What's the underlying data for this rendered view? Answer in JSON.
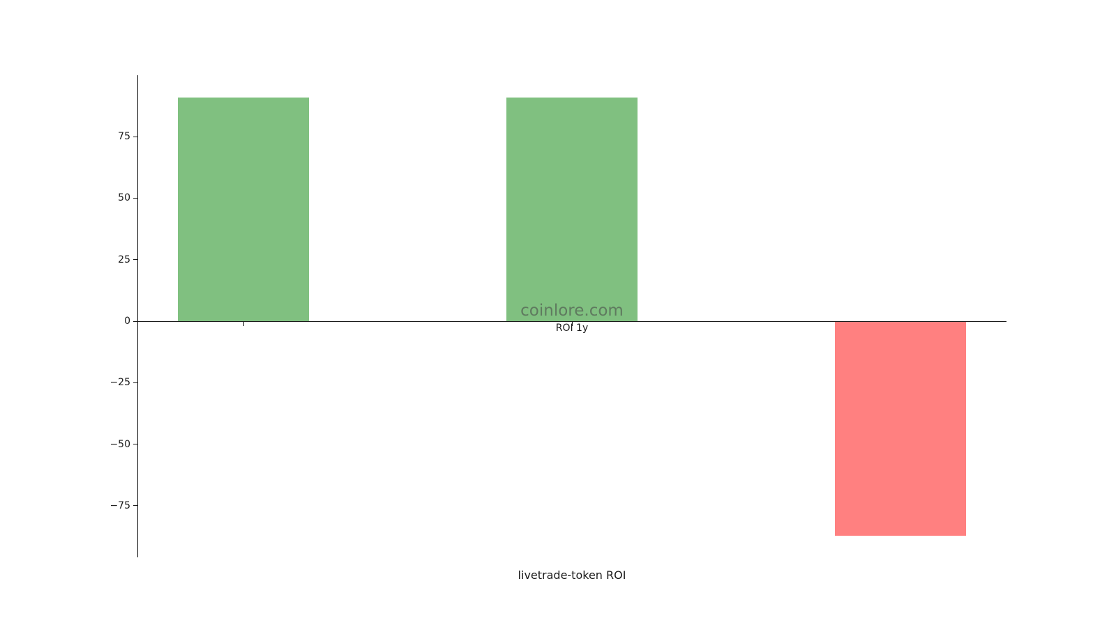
{
  "watermark": {
    "text": "coinlore.com"
  },
  "chart_data": {
    "type": "bar",
    "title": "livetrade-token ROI",
    "categories": [
      "",
      "ROI 1y",
      ""
    ],
    "values": [
      91,
      91,
      -87
    ],
    "bar_colors": [
      "#80c080",
      "#80c080",
      "#ff8080"
    ],
    "positive_color": "#80c080",
    "negative_color": "#ff8080",
    "x_visible_label": "ROI 1y",
    "yticks": [
      {
        "value": 75,
        "label": "75"
      },
      {
        "value": 50,
        "label": "50"
      },
      {
        "value": 25,
        "label": "25"
      },
      {
        "value": 0,
        "label": "0"
      },
      {
        "value": -25,
        "label": "−25"
      },
      {
        "value": -50,
        "label": "−50"
      },
      {
        "value": -75,
        "label": "−75"
      }
    ],
    "ylim": [
      -96,
      100
    ],
    "xlabel": "",
    "ylabel": "",
    "grid": false,
    "legend": false
  }
}
